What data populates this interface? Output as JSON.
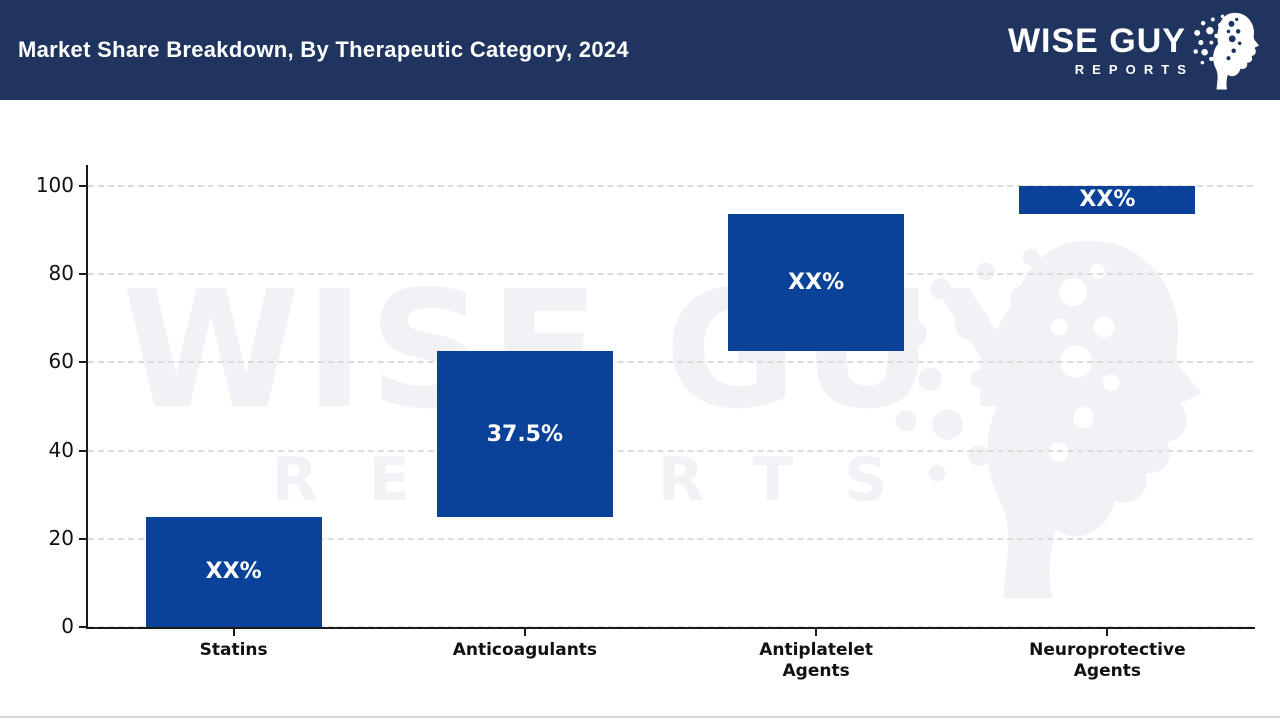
{
  "header": {
    "title": "Market Share Breakdown, By Therapeutic Category, 2024",
    "logo": {
      "wordmark": "WISE GUY",
      "subtext": "REPORTS"
    }
  },
  "watermark": {
    "line1": "WISE GUY",
    "line2": "REPORTS"
  },
  "colors": {
    "header_bg": "#1f3560",
    "bar": "#0b4299",
    "bar_label": "#ffffff",
    "grid": "#dcdcdc",
    "axis": "#1a1a1a",
    "watermark": "#f1f2f5"
  },
  "chart_data": {
    "type": "bar",
    "subtype": "waterfall-floating-bars",
    "title": "Market Share Breakdown, By Therapeutic Category, 2024",
    "categories": [
      "Statins",
      "Anticoagulants",
      "Antiplatelet\nAgents",
      "Neuroprotective\nAgents"
    ],
    "segments": [
      {
        "category": "Statins",
        "start": 0,
        "end": 25,
        "label": "XX%"
      },
      {
        "category": "Anticoagulants",
        "start": 25,
        "end": 62.5,
        "label": "37.5%"
      },
      {
        "category": "Antiplatelet Agents",
        "start": 62.5,
        "end": 93.75,
        "label": "XX%"
      },
      {
        "category": "Neuroprotective Agents",
        "start": 93.75,
        "end": 100,
        "label": "XX%"
      }
    ],
    "ylabel": "",
    "xlabel": "",
    "yticks": [
      0,
      20,
      40,
      60,
      80,
      100
    ],
    "ylim": [
      0,
      100
    ],
    "grid": "horizontal-dashed",
    "legend": "none",
    "bar_color": "#0b4299"
  }
}
